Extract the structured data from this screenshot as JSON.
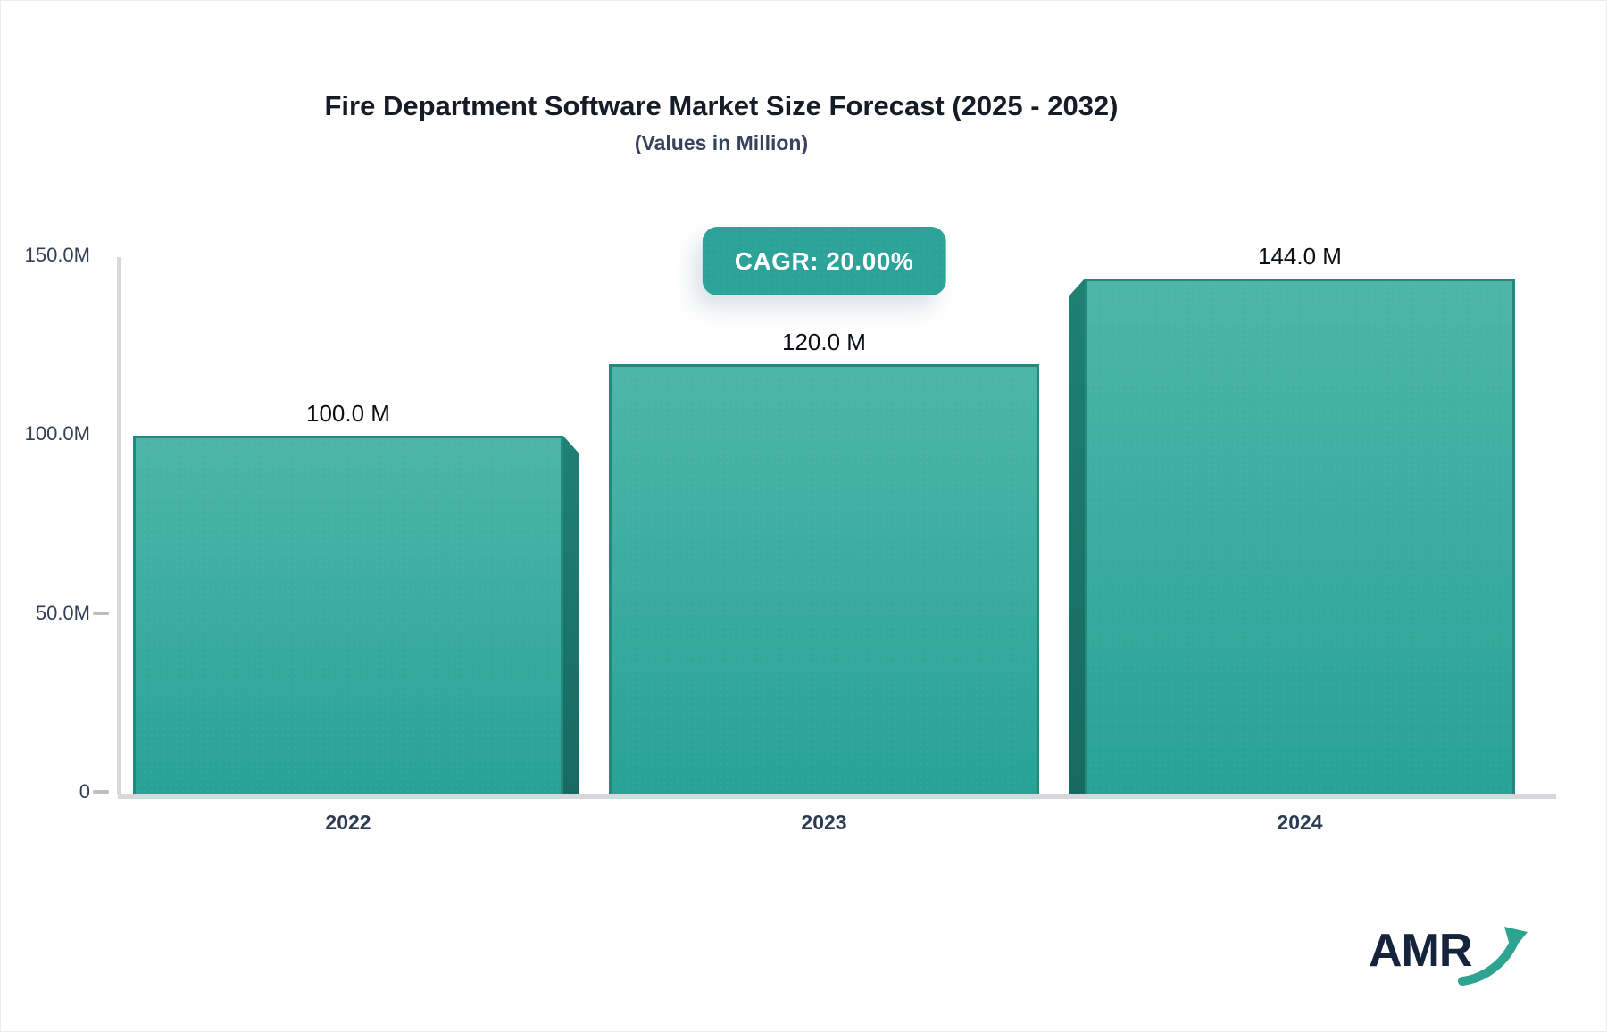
{
  "title": "Fire Department Software Market Size Forecast (2025 - 2032)",
  "subtitle": "(Values in Million)",
  "badge": {
    "label": "CAGR: 20.00%"
  },
  "logo": {
    "text": "AMR",
    "arrow": "trend-up-arrow"
  },
  "colors": {
    "bar_top": "#4db5a9",
    "bar_bottom": "#28a296",
    "bar_border": "#23897d",
    "bar_side": "#1f8175",
    "badge_bg": "#2ba398",
    "axis_line": "#d6d8dc",
    "tick": "#b9bdc4",
    "title_text": "#151c26",
    "value_text": "#0b0e12",
    "axis_label_text": "#323f54",
    "logo_navy": "#16233c",
    "logo_teal": "#2ea391"
  },
  "chart_data": {
    "type": "bar",
    "title": "Fire Department Software Market Size Forecast (2025 - 2032)",
    "subtitle": "(Values in Million)",
    "annotation": "CAGR: 20.00%",
    "categories": [
      "2022",
      "2023",
      "2024"
    ],
    "values": [
      100.0,
      120.0,
      144.0
    ],
    "value_labels": [
      "100.0 M",
      "120.0 M",
      "144.0 M"
    ],
    "bar_3d": [
      "right",
      "none",
      "left"
    ],
    "xlabel": "",
    "ylabel": "",
    "ylim": [
      0,
      150
    ],
    "y_ticks": [
      {
        "label": "0",
        "value": 0,
        "dash": true
      },
      {
        "label": "50.0M",
        "value": 50,
        "dash": true
      },
      {
        "label": "100.0M",
        "value": 100,
        "dash": false
      },
      {
        "label": "150.0M",
        "value": 150,
        "dash": false
      }
    ],
    "grid": false,
    "legend": false
  }
}
